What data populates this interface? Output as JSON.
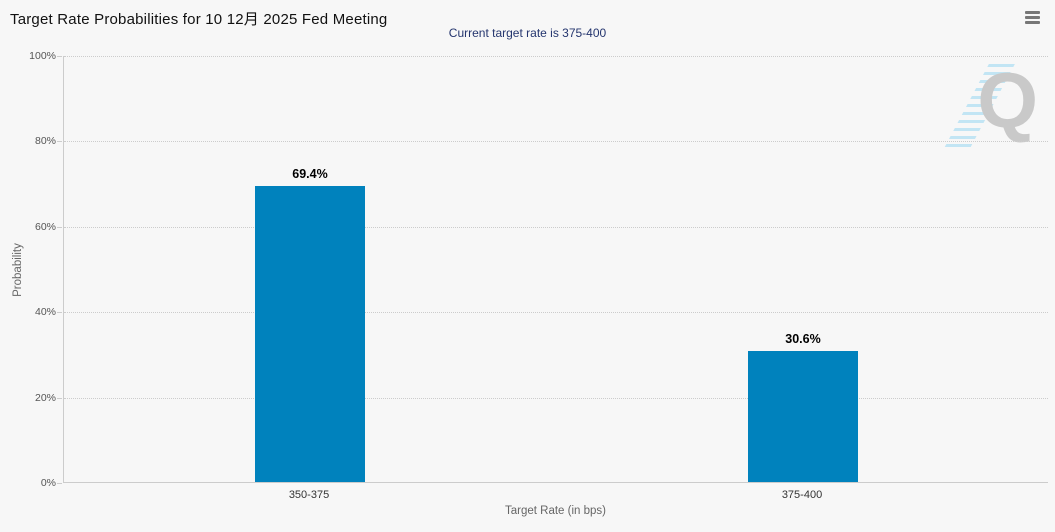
{
  "header": {
    "title": "Target Rate Probabilities for 10 12月 2025 Fed Meeting",
    "subtitle": "Current target rate is 375-400"
  },
  "menu": {
    "icon": "hamburger-menu-icon"
  },
  "watermark": {
    "letter": "Q"
  },
  "colors": {
    "background": "#f7f7f7",
    "bar": "#0082bd",
    "subtitle": "#24356e",
    "grid": "#cccccc",
    "tick_label": "#555555",
    "axis_title": "#666666"
  },
  "chart_data": {
    "type": "bar",
    "title": "Target Rate Probabilities for 10 12月 2025 Fed Meeting",
    "subtitle": "Current target rate is 375-400",
    "categories": [
      "350-375",
      "375-400"
    ],
    "values": [
      69.4,
      30.6
    ],
    "value_labels": [
      "69.4%",
      "30.6%"
    ],
    "xlabel": "Target Rate (in bps)",
    "ylabel": "Probability",
    "ylim": [
      0,
      100
    ],
    "ytick_values": [
      0,
      20,
      40,
      60,
      80,
      100
    ],
    "ytick_labels": [
      "0%",
      "20%",
      "40%",
      "60%",
      "80%",
      "100%"
    ],
    "grid": "horizontal-dotted",
    "legend": "none",
    "bar_color": "#0082bd"
  }
}
